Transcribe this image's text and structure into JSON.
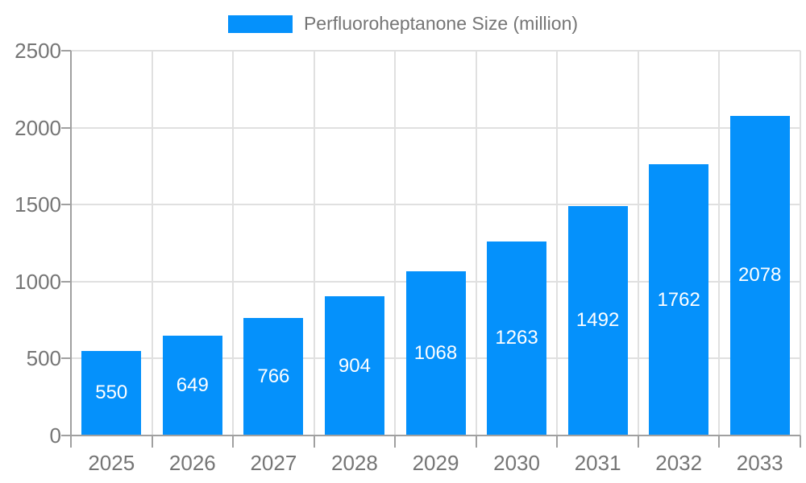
{
  "colors": {
    "bar": "#0591fb",
    "grid": "#e0e0e0",
    "axis": "#a0a0a0",
    "label": "#757575",
    "value-label": "#ffffff",
    "bg": "#ffffff"
  },
  "chart_data": {
    "type": "bar",
    "title": "Perfluoroheptanone Size (million)",
    "series": [
      {
        "name": "Perfluoroheptanone Size (million)",
        "values": [
          550,
          649,
          766,
          904,
          1068,
          1263,
          1492,
          1762,
          2078
        ]
      }
    ],
    "categories": [
      "2025",
      "2026",
      "2027",
      "2028",
      "2029",
      "2030",
      "2031",
      "2032",
      "2033"
    ],
    "xlabel": "",
    "ylabel": "",
    "ylim": [
      0,
      2500
    ],
    "y_ticks": [
      0,
      500,
      1000,
      1500,
      2000,
      2500
    ],
    "grid": true,
    "legend_position": "top-center",
    "value_labels": "inside-center"
  }
}
